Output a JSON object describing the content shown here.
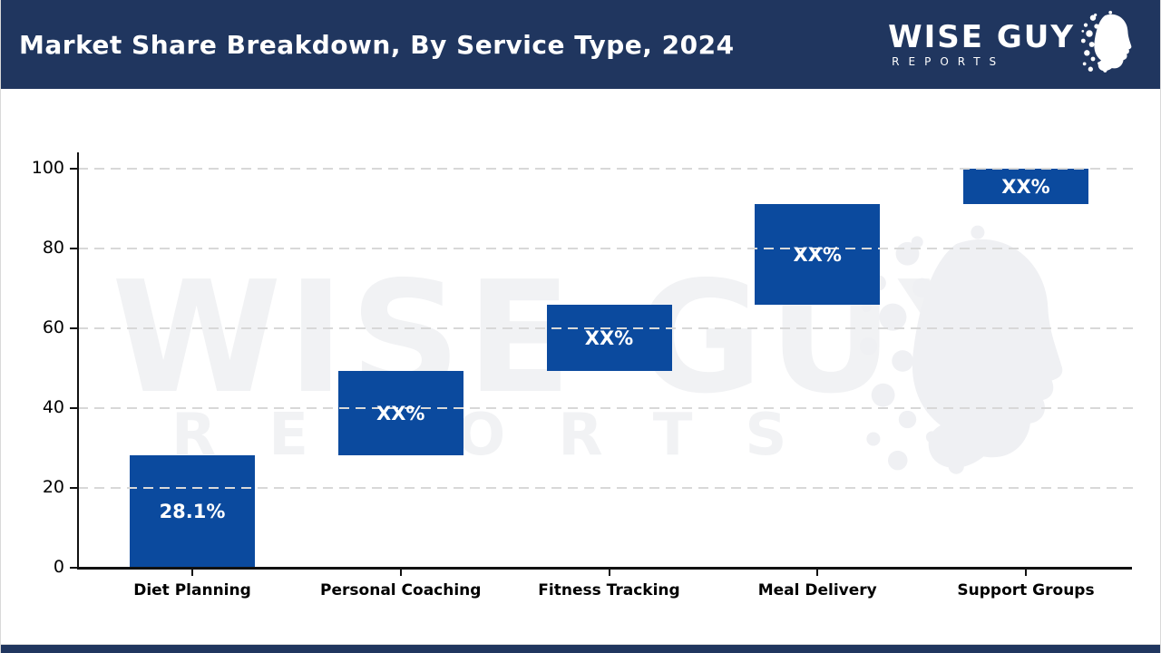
{
  "header": {
    "title": "Market Share Breakdown, By Service Type, 2024"
  },
  "logo": {
    "line1": "WISE GUY",
    "line2": "REPORTS"
  },
  "watermark": {
    "line1": "WISE GUY",
    "line2": "REPORTS"
  },
  "colors": {
    "header_bg": "#20365f",
    "footer_bg": "#20365f",
    "bar": "#0b4a9e",
    "bar_label": "#ffffff",
    "grid": "#d8d8d8",
    "axis": "#111111",
    "watermark": "#f1f2f4",
    "watermark_face": "#eff0f3"
  },
  "chart_data": {
    "type": "bar",
    "subtype": "waterfall-floating",
    "title": "Market Share Breakdown, By Service Type, 2024",
    "categories": [
      "Diet Planning",
      "Personal Coaching",
      "Fitness Tracking",
      "Meal Delivery",
      "Support Groups"
    ],
    "segments": [
      {
        "category": "Diet Planning",
        "start": 0,
        "end": 28.1,
        "label": "28.1%"
      },
      {
        "category": "Personal Coaching",
        "start": 28.1,
        "end": 49.3,
        "label": "XX%"
      },
      {
        "category": "Fitness Tracking",
        "start": 49.3,
        "end": 65.9,
        "label": "XX%"
      },
      {
        "category": "Meal Delivery",
        "start": 65.9,
        "end": 91.1,
        "label": "XX%"
      },
      {
        "category": "Support Groups",
        "start": 91.1,
        "end": 100,
        "label": "XX%"
      }
    ],
    "xlabel": "",
    "ylabel": "",
    "y_ticks": [
      0,
      20,
      40,
      60,
      80,
      100
    ],
    "ylim": [
      0,
      104
    ],
    "grid": "horizontal-dashed",
    "legend": "none"
  }
}
